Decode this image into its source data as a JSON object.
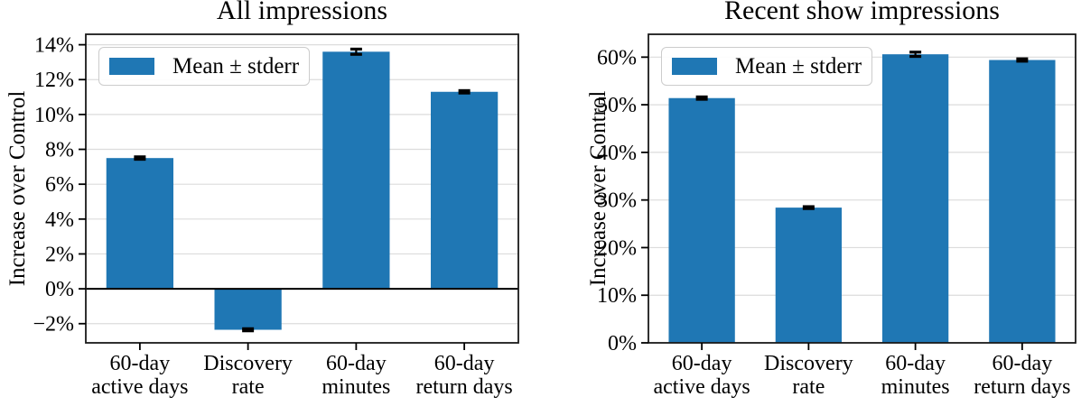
{
  "figure": {
    "background": "#ffffff",
    "bar_color": "#1f77b4",
    "grid_color": "#dcdcdc",
    "spine_color": "#1a1a1a",
    "error_color": "#000000"
  },
  "chart_data": [
    {
      "type": "bar",
      "title": "All impressions",
      "ylabel": "Increase over Control",
      "legend_label": "Mean ± stderr",
      "legend_position": "upper left",
      "categories": [
        [
          "60-day",
          "active days"
        ],
        [
          "Discovery",
          "rate"
        ],
        [
          "60-day",
          "minutes"
        ],
        [
          "60-day",
          "return days"
        ]
      ],
      "values": [
        7.5,
        -2.35,
        13.6,
        11.3
      ],
      "stderr": [
        0.07,
        0.06,
        0.15,
        0.07
      ],
      "yticks": [
        -2,
        0,
        2,
        4,
        6,
        8,
        10,
        12,
        14
      ],
      "ytick_suffix": "%",
      "ylim": [
        -3.1,
        14.6
      ],
      "zero_line": true,
      "grid": true
    },
    {
      "type": "bar",
      "title": "Recent show impressions",
      "ylabel": "Increase over Control",
      "legend_label": "Mean ± stderr",
      "legend_position": "upper left",
      "categories": [
        [
          "60-day",
          "active days"
        ],
        [
          "Discovery",
          "rate"
        ],
        [
          "60-day",
          "minutes"
        ],
        [
          "60-day",
          "return days"
        ]
      ],
      "values": [
        51.4,
        28.4,
        60.6,
        59.4
      ],
      "stderr": [
        0.25,
        0.2,
        0.45,
        0.25
      ],
      "yticks": [
        0,
        10,
        20,
        30,
        40,
        50,
        60
      ],
      "ytick_suffix": "%",
      "ylim": [
        0,
        64.8
      ],
      "zero_line": false,
      "grid": true
    }
  ]
}
